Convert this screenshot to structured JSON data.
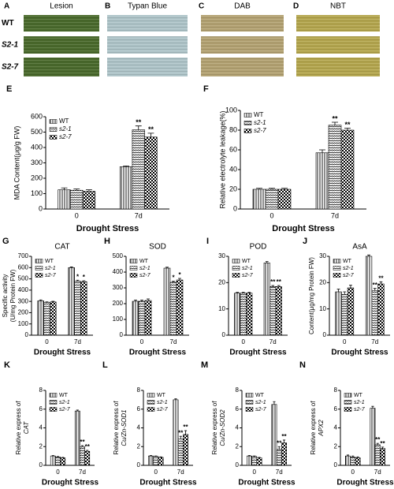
{
  "photo_panels": {
    "panels": [
      {
        "letter": "A",
        "title": "Lesion",
        "color": "#4a6a2c"
      },
      {
        "letter": "B",
        "title": "Typan Blue",
        "color": "#aec4c8"
      },
      {
        "letter": "C",
        "title": "DAB",
        "color": "#b3a272"
      },
      {
        "letter": "D",
        "title": "NBT",
        "color": "#b4a64e"
      }
    ],
    "row_labels": [
      "WT",
      "S2-1",
      "S2-7"
    ]
  },
  "chart_data": [
    {
      "type": "bar",
      "panel": "E",
      "ylabel": [
        "MDA Content(μg/g FW)"
      ],
      "xlabel": "Drought Stress",
      "categories": [
        "0",
        "7d"
      ],
      "ylim": [
        0,
        600
      ],
      "yticks": [
        0,
        100,
        200,
        300,
        400,
        500,
        600
      ],
      "legend": "upper left",
      "series": [
        {
          "name": "WT",
          "pattern": "vertical",
          "color": "#000000",
          "values": [
            125,
            275
          ],
          "errors": [
            12,
            5
          ],
          "significance": [
            null,
            null
          ]
        },
        {
          "name": "s2-1",
          "pattern": "wavy",
          "color": "#000000",
          "values": [
            122,
            515
          ],
          "errors": [
            8,
            25
          ],
          "significance": [
            null,
            "**"
          ]
        },
        {
          "name": "s2-7",
          "pattern": "checker",
          "color": "#000000",
          "values": [
            115,
            468
          ],
          "errors": [
            10,
            25
          ],
          "significance": [
            null,
            "**"
          ]
        }
      ]
    },
    {
      "type": "bar",
      "panel": "F",
      "ylabel": [
        "Relative electrolyte leakage(%)"
      ],
      "xlabel": "Drought Stress",
      "categories": [
        "0",
        "7d"
      ],
      "ylim": [
        0,
        100
      ],
      "yticks": [
        0,
        20,
        40,
        60,
        80,
        100
      ],
      "legend": "upper left",
      "series": [
        {
          "name": "WT",
          "pattern": "vertical",
          "color": "#000000",
          "values": [
            20,
            57
          ],
          "errors": [
            1,
            3
          ],
          "significance": [
            null,
            null
          ]
        },
        {
          "name": "s2-1",
          "pattern": "wavy",
          "color": "#000000",
          "values": [
            20,
            85
          ],
          "errors": [
            1,
            3
          ],
          "significance": [
            null,
            "**"
          ]
        },
        {
          "name": "s2-7",
          "pattern": "checker",
          "color": "#000000",
          "values": [
            20,
            80
          ],
          "errors": [
            1,
            2
          ],
          "significance": [
            null,
            "**"
          ]
        }
      ]
    },
    {
      "type": "bar",
      "panel": "G",
      "title": "CAT",
      "ylabel": [
        "Specific activity",
        "(U/mg Protein FW)"
      ],
      "xlabel": "Drought Stress",
      "categories": [
        "0",
        "7d"
      ],
      "ylim": [
        0,
        700
      ],
      "yticks": [
        0,
        100,
        200,
        300,
        400,
        500,
        600,
        700
      ],
      "legend": "upper left",
      "series": [
        {
          "name": "WT",
          "pattern": "vertical",
          "color": "#000000",
          "values": [
            305,
            600
          ],
          "errors": [
            8,
            6
          ],
          "significance": [
            null,
            null
          ]
        },
        {
          "name": "s2-1",
          "pattern": "wavy",
          "color": "#000000",
          "values": [
            290,
            480
          ],
          "errors": [
            6,
            8
          ],
          "significance": [
            null,
            "*"
          ]
        },
        {
          "name": "s2-7",
          "pattern": "checker",
          "color": "#000000",
          "values": [
            295,
            475
          ],
          "errors": [
            6,
            8
          ],
          "significance": [
            null,
            "*"
          ]
        }
      ]
    },
    {
      "type": "bar",
      "panel": "H",
      "title": "SOD",
      "xlabel": "Drought Stress",
      "categories": [
        "0",
        "7d"
      ],
      "ylim": [
        0,
        500
      ],
      "yticks": [
        0,
        100,
        200,
        300,
        400,
        500
      ],
      "legend": "upper left",
      "series": [
        {
          "name": "WT",
          "pattern": "vertical",
          "color": "#000000",
          "values": [
            215,
            425
          ],
          "errors": [
            8,
            6
          ],
          "significance": [
            null,
            null
          ]
        },
        {
          "name": "s2-1",
          "pattern": "wavy",
          "color": "#000000",
          "values": [
            215,
            335
          ],
          "errors": [
            8,
            8
          ],
          "significance": [
            null,
            "*"
          ]
        },
        {
          "name": "s2-7",
          "pattern": "checker",
          "color": "#000000",
          "values": [
            220,
            350
          ],
          "errors": [
            10,
            10
          ],
          "significance": [
            null,
            "*"
          ]
        }
      ]
    },
    {
      "type": "bar",
      "panel": "I",
      "title": "POD",
      "xlabel": "Drought Stress",
      "categories": [
        "0",
        "7d"
      ],
      "ylim": [
        0,
        30
      ],
      "yticks": [
        0,
        10,
        20,
        30
      ],
      "legend": "upper left",
      "series": [
        {
          "name": "WT",
          "pattern": "vertical",
          "color": "#000000",
          "values": [
            16,
            27.5
          ],
          "errors": [
            0.3,
            0.5
          ],
          "significance": [
            null,
            null
          ]
        },
        {
          "name": "s2-1",
          "pattern": "wavy",
          "color": "#000000",
          "values": [
            16,
            18.5
          ],
          "errors": [
            0.3,
            0.4
          ],
          "significance": [
            null,
            "**"
          ]
        },
        {
          "name": "s2-7",
          "pattern": "checker",
          "color": "#000000",
          "values": [
            16,
            18.5
          ],
          "errors": [
            0.3,
            0.4
          ],
          "significance": [
            null,
            "**"
          ]
        }
      ]
    },
    {
      "type": "bar",
      "panel": "J",
      "title": "AsA",
      "ylabel": [
        "Content(μg/mg Protein FW)"
      ],
      "xlabel": "Drought Stress",
      "categories": [
        "0",
        "7d"
      ],
      "ylim": [
        0,
        30
      ],
      "yticks": [
        0,
        10,
        20,
        30
      ],
      "legend": "upper left",
      "series": [
        {
          "name": "WT",
          "pattern": "vertical",
          "color": "#000000",
          "values": [
            16.5,
            30
          ],
          "errors": [
            1,
            0.5
          ],
          "significance": [
            null,
            null
          ]
        },
        {
          "name": "s2-1",
          "pattern": "wavy",
          "color": "#000000",
          "values": [
            15.5,
            17
          ],
          "errors": [
            1,
            0.8
          ],
          "significance": [
            null,
            "**"
          ]
        },
        {
          "name": "s2-7",
          "pattern": "checker",
          "color": "#000000",
          "values": [
            18,
            19.5
          ],
          "errors": [
            1,
            0.8
          ],
          "significance": [
            null,
            "**"
          ]
        }
      ]
    },
    {
      "type": "bar",
      "panel": "K",
      "ylabel": [
        "Relative express of",
        "CAT"
      ],
      "ylabel_style": [
        "normal",
        "italic"
      ],
      "xlabel": "Drought Stress",
      "categories": [
        "0",
        "7d"
      ],
      "ylim": [
        0,
        8
      ],
      "yticks": [
        0,
        2,
        4,
        6,
        8
      ],
      "legend": "upper left",
      "series": [
        {
          "name": "WT",
          "pattern": "vertical",
          "color": "#000000",
          "values": [
            1,
            5.8
          ],
          "errors": [
            0.05,
            0.1
          ],
          "significance": [
            null,
            null
          ]
        },
        {
          "name": "s2-1",
          "pattern": "wavy",
          "color": "#000000",
          "values": [
            0.9,
            2
          ],
          "errors": [
            0.05,
            0.1
          ],
          "significance": [
            null,
            "**"
          ]
        },
        {
          "name": "s2-7",
          "pattern": "checker",
          "color": "#000000",
          "values": [
            0.8,
            1.5
          ],
          "errors": [
            0.05,
            0.1
          ],
          "significance": [
            null,
            "**"
          ]
        }
      ]
    },
    {
      "type": "bar",
      "panel": "L",
      "ylabel": [
        "Relative express of",
        "Cu/Zn-SOD1"
      ],
      "ylabel_style": [
        "normal",
        "italic"
      ],
      "xlabel": "Drought Stress",
      "categories": [
        "0",
        "7d"
      ],
      "ylim": [
        0,
        8
      ],
      "yticks": [
        0,
        2,
        4,
        6,
        8
      ],
      "legend": "upper left",
      "series": [
        {
          "name": "WT",
          "pattern": "vertical",
          "color": "#000000",
          "values": [
            1,
            7
          ],
          "errors": [
            0.05,
            0.1
          ],
          "significance": [
            null,
            null
          ]
        },
        {
          "name": "s2-1",
          "pattern": "wavy",
          "color": "#000000",
          "values": [
            0.95,
            2.8
          ],
          "errors": [
            0.05,
            0.3
          ],
          "significance": [
            null,
            "**"
          ]
        },
        {
          "name": "s2-7",
          "pattern": "checker",
          "color": "#000000",
          "values": [
            0.85,
            3.3
          ],
          "errors": [
            0.05,
            0.4
          ],
          "significance": [
            null,
            "**"
          ]
        }
      ]
    },
    {
      "type": "bar",
      "panel": "M",
      "ylabel": [
        "Relative express of",
        "Cu/Zn-SOD2"
      ],
      "ylabel_style": [
        "normal",
        "italic"
      ],
      "xlabel": "Drought Stress",
      "categories": [
        "0",
        "7d"
      ],
      "ylim": [
        0,
        8
      ],
      "yticks": [
        0,
        2,
        4,
        6,
        8
      ],
      "legend": "upper left",
      "series": [
        {
          "name": "WT",
          "pattern": "vertical",
          "color": "#000000",
          "values": [
            1,
            6.5
          ],
          "errors": [
            0.05,
            0.3
          ],
          "significance": [
            null,
            null
          ]
        },
        {
          "name": "s2-1",
          "pattern": "wavy",
          "color": "#000000",
          "values": [
            0.95,
            1.7
          ],
          "errors": [
            0.05,
            0.3
          ],
          "significance": [
            null,
            "**"
          ]
        },
        {
          "name": "s2-7",
          "pattern": "checker",
          "color": "#000000",
          "values": [
            0.8,
            2.4
          ],
          "errors": [
            0.05,
            0.3
          ],
          "significance": [
            null,
            "**"
          ]
        }
      ]
    },
    {
      "type": "bar",
      "panel": "N",
      "ylabel": [
        "Relative express of",
        "APX2"
      ],
      "ylabel_style": [
        "normal",
        "italic"
      ],
      "xlabel": "Drought Stress",
      "categories": [
        "0",
        "7d"
      ],
      "ylim": [
        0,
        8
      ],
      "yticks": [
        0,
        2,
        4,
        6,
        8
      ],
      "legend": "upper left",
      "series": [
        {
          "name": "WT",
          "pattern": "vertical",
          "color": "#000000",
          "values": [
            1,
            6.1
          ],
          "errors": [
            0.1,
            0.2
          ],
          "significance": [
            null,
            null
          ]
        },
        {
          "name": "s2-1",
          "pattern": "wavy",
          "color": "#000000",
          "values": [
            0.9,
            2.2
          ],
          "errors": [
            0.1,
            0.15
          ],
          "significance": [
            null,
            "**"
          ]
        },
        {
          "name": "s2-7",
          "pattern": "checker",
          "color": "#000000",
          "values": [
            0.8,
            1.8
          ],
          "errors": [
            0.1,
            0.15
          ],
          "significance": [
            null,
            "**"
          ]
        }
      ]
    }
  ]
}
